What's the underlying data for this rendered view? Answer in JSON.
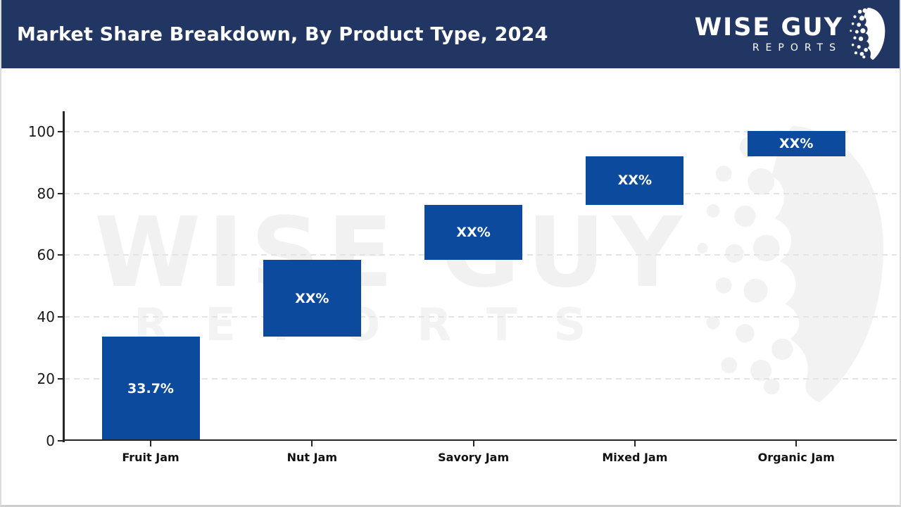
{
  "header": {
    "title": "Market Share Breakdown, By Product Type, 2024",
    "logo": {
      "line1": "WISE GUY",
      "line2": "REPORTS"
    }
  },
  "watermark": {
    "line1": "WISE GUY",
    "line2": "REPORTS"
  },
  "colors": {
    "header_bg": "#213663",
    "bar_blue": "#0c4a9e",
    "axis": "#262626",
    "gridline": "#e4e4e4",
    "watermark": "#f1f1f1",
    "frame_border": "#dcdcdc",
    "title_text": "#ffffff"
  },
  "chart_data": {
    "type": "bar",
    "subtype": "waterfall",
    "title": "Market Share Breakdown, By Product Type, 2024",
    "categories": [
      "Fruit Jam",
      "Nut Jam",
      "Savory Jam",
      "Mixed Jam",
      "Organic Jam"
    ],
    "segments": [
      {
        "category": "Fruit Jam",
        "start": 0,
        "end": 33.7,
        "label": "33.7%"
      },
      {
        "category": "Nut Jam",
        "start": 33.7,
        "end": 58.4,
        "label": "XX%"
      },
      {
        "category": "Savory Jam",
        "start": 58.4,
        "end": 76.4,
        "label": "XX%"
      },
      {
        "category": "Mixed Jam",
        "start": 76.4,
        "end": 92.1,
        "label": "XX%"
      },
      {
        "category": "Organic Jam",
        "start": 92.1,
        "end": 100.3,
        "label": "XX%"
      }
    ],
    "y_ticks": [
      0,
      20,
      40,
      60,
      80,
      100
    ],
    "ylim": [
      0,
      107
    ],
    "xlabel": "",
    "ylabel": "",
    "grid": "dashed horizontal",
    "legend": "none",
    "bar_color": "#0c4a9e"
  }
}
